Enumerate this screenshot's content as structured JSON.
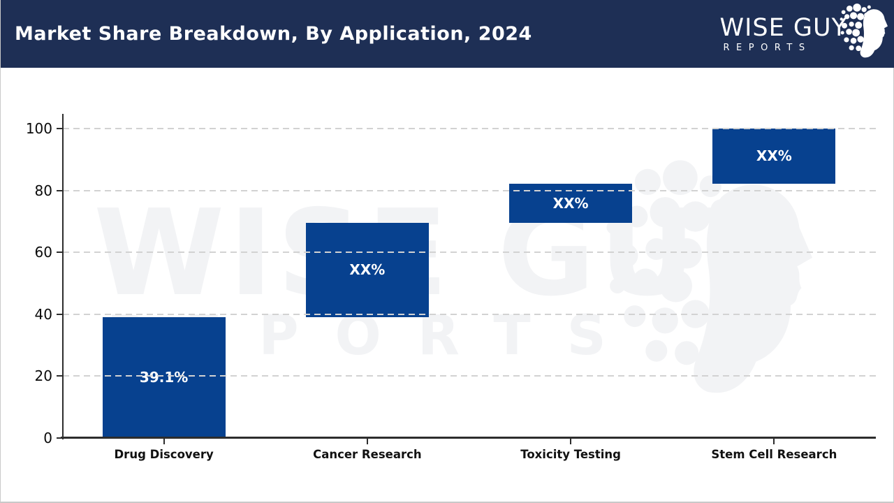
{
  "header": {
    "title": "Market Share Breakdown, By Application, 2024",
    "logo": {
      "wordmark": "WISE GUY",
      "subtext": "REPORTS"
    }
  },
  "watermark": {
    "line1": "WISE GUY",
    "line2": "REPORTS"
  },
  "colors": {
    "header_bg": "#1e2f55",
    "bar": "#07418f",
    "bar_label": "#ffffff",
    "grid": "#d2d2d2",
    "axis": "#2d2d2d",
    "watermark": "#f2f3f5"
  },
  "chart_data": {
    "type": "bar",
    "variant": "waterfall",
    "title": "Market Share Breakdown, By Application, 2024",
    "categories": [
      "Drug Discovery",
      "Cancer Research",
      "Toxicity Testing",
      "Stem Cell Research"
    ],
    "segments": [
      {
        "category": "Drug Discovery",
        "start": 0,
        "end": 39.1,
        "label": "39.1%",
        "value": 39.1
      },
      {
        "category": "Cancer Research",
        "start": 39.1,
        "end": 69.5,
        "label": "XX%",
        "value": 30.4
      },
      {
        "category": "Toxicity Testing",
        "start": 69.5,
        "end": 82.2,
        "label": "XX%",
        "value": 12.7
      },
      {
        "category": "Stem Cell Research",
        "start": 82.2,
        "end": 100,
        "label": "XX%",
        "value": 17.8
      }
    ],
    "xlabel": "",
    "ylabel": "",
    "y_ticks": [
      "0",
      "20",
      "40",
      "60",
      "80",
      "100"
    ],
    "ylim": [
      0,
      105
    ],
    "grid": {
      "horizontal": true,
      "style": "dashed",
      "drawn_over_bars": true
    },
    "legend": "none"
  }
}
